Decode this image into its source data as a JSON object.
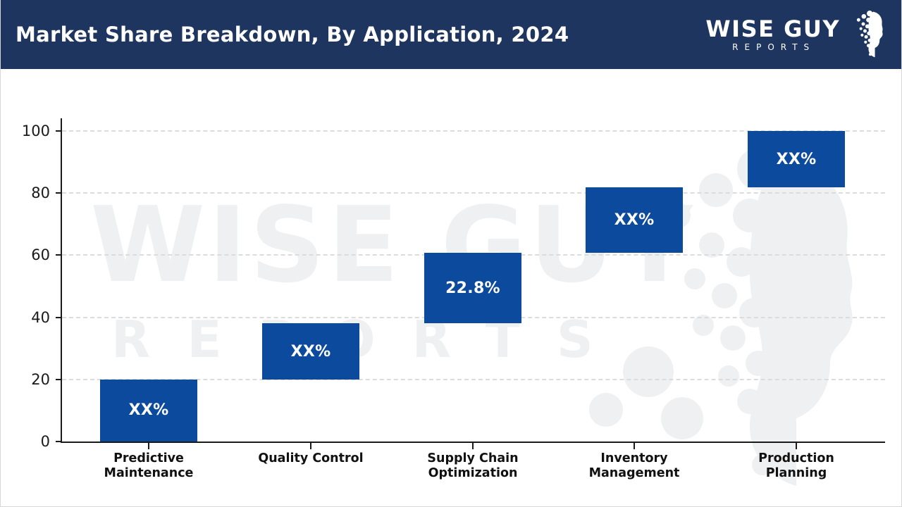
{
  "header": {
    "title": "Market Share Breakdown, By Application, 2024",
    "logo_line1": "WISE GUY",
    "logo_line2": "REPORTS"
  },
  "watermark": {
    "line1": "WISE GUY",
    "line2": "REPORTS"
  },
  "colors": {
    "header_bg": "#1E3560",
    "bar": "#0C4A9E",
    "bar_label": "#ffffff",
    "gridline": "#dcdcdc",
    "axis": "#1a1a1a",
    "watermark": "#eff0f2"
  },
  "chart_data": {
    "type": "bar",
    "subtype": "floating-waterfall",
    "title": "Market Share Breakdown, By Application, 2024",
    "categories": [
      "Predictive\nMaintenance",
      "Quality Control",
      "Supply Chain\nOptimization",
      "Inventory\nManagement",
      "Production\nPlanning"
    ],
    "segments": [
      {
        "category": "Predictive Maintenance",
        "start": 0,
        "end": 20,
        "label": "XX%"
      },
      {
        "category": "Quality Control",
        "start": 20,
        "end": 38,
        "label": "XX%"
      },
      {
        "category": "Supply Chain Optimization",
        "start": 38,
        "end": 60.8,
        "label": "22.8%"
      },
      {
        "category": "Inventory Management",
        "start": 60.8,
        "end": 81.8,
        "label": "XX%"
      },
      {
        "category": "Production Planning",
        "start": 81.8,
        "end": 100,
        "label": "XX%"
      }
    ],
    "yticks": [
      0,
      20,
      40,
      60,
      80,
      100
    ],
    "ylim": [
      0,
      105
    ],
    "xlabel": "",
    "ylabel": "",
    "grid": "dashed-horizontal",
    "legend": "none"
  }
}
